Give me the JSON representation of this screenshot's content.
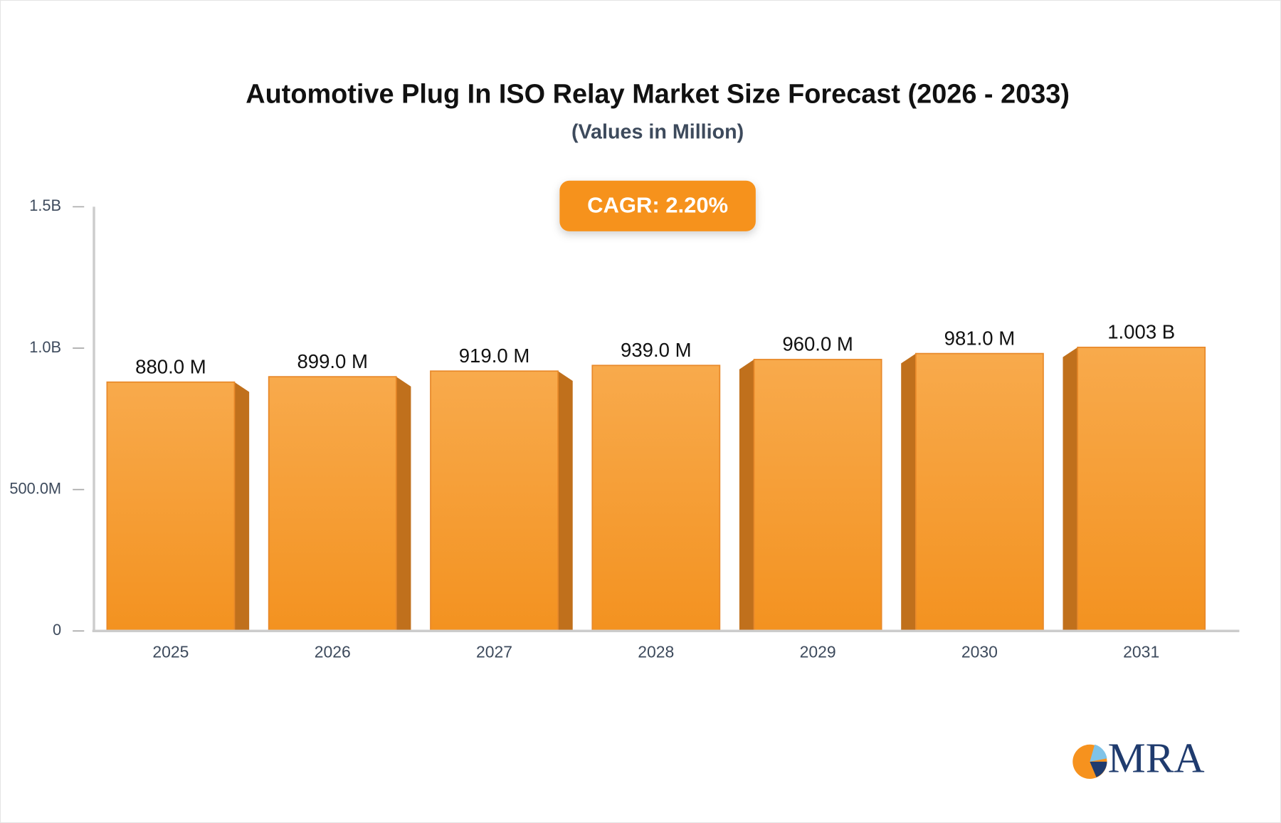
{
  "chart_data": {
    "type": "bar",
    "title": "Automotive Plug In ISO Relay Market Size Forecast (2026 - 2033)",
    "subtitle": "(Values in Million)",
    "annotation": "CAGR: 2.20%",
    "logo": "MRA",
    "categories": [
      "2025",
      "2026",
      "2027",
      "2028",
      "2029",
      "2030",
      "2031"
    ],
    "values": [
      880000000,
      899000000,
      919000000,
      939000000,
      960000000,
      981000000,
      1003000000
    ],
    "value_labels": [
      "880.0 M",
      "899.0 M",
      "919.0 M",
      "939.0 M",
      "960.0 M",
      "981.0 M",
      "1.003 B"
    ],
    "color": "#f6a03c",
    "ylim": [
      0,
      1500000000
    ],
    "yticks": [
      0,
      {
        "value": 500000000,
        "label": "500.0M"
      },
      {
        "value": 1000000000,
        "label": "1.0B"
      },
      {
        "value": 1500000000,
        "label": "1.5B"
      }
    ],
    "grid": false
  }
}
